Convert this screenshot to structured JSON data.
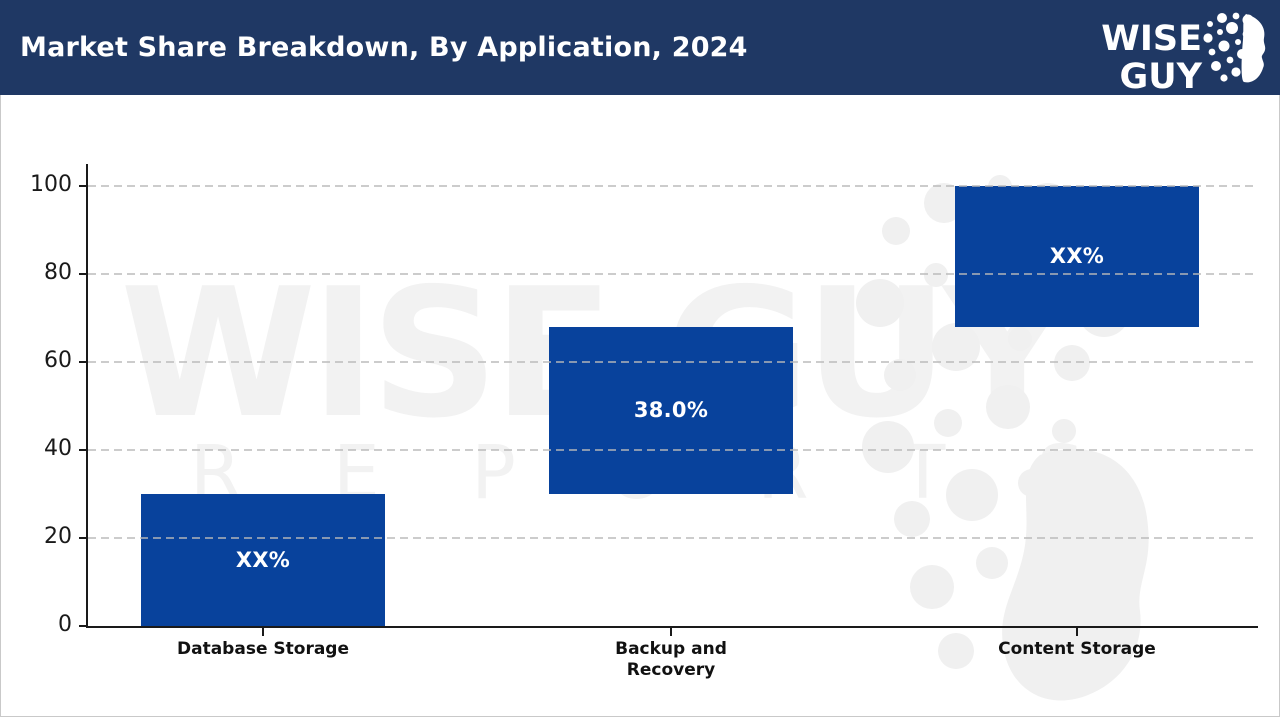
{
  "header": {
    "title": "Market Share Breakdown, By Application, 2024",
    "logo_line1": "WISE GUY",
    "logo_line2": "REPORTS",
    "bg_color": "#1f3864"
  },
  "watermark": {
    "line1": "WISE GUY",
    "line2": "R E P O R T S"
  },
  "chart_data": {
    "type": "bar",
    "subtype": "waterfall",
    "title": "Market Share Breakdown, By Application, 2024",
    "categories": [
      "Database Storage",
      "Backup and Recovery",
      "Content Storage"
    ],
    "category_lines": [
      [
        "Database Storage"
      ],
      [
        "Backup and",
        "Recovery"
      ],
      [
        "Content Storage"
      ]
    ],
    "segments": [
      {
        "category": "Database Storage",
        "start": 0,
        "end": 30,
        "label": "XX%"
      },
      {
        "category": "Backup and Recovery",
        "start": 30,
        "end": 68,
        "label": "38.0%"
      },
      {
        "category": "Content Storage",
        "start": 68,
        "end": 100,
        "label": "XX%"
      }
    ],
    "yticks": [
      0,
      20,
      40,
      60,
      80,
      100
    ],
    "ylim": [
      0,
      105
    ],
    "xlabel": "",
    "ylabel": "",
    "grid": "horizontal-dashed",
    "legend_position": "none",
    "bar_color": "#08429c",
    "axis_color": "#1a1a1a",
    "gridline_color": "#b9b9b9",
    "value_label_color": "#ffffff"
  }
}
